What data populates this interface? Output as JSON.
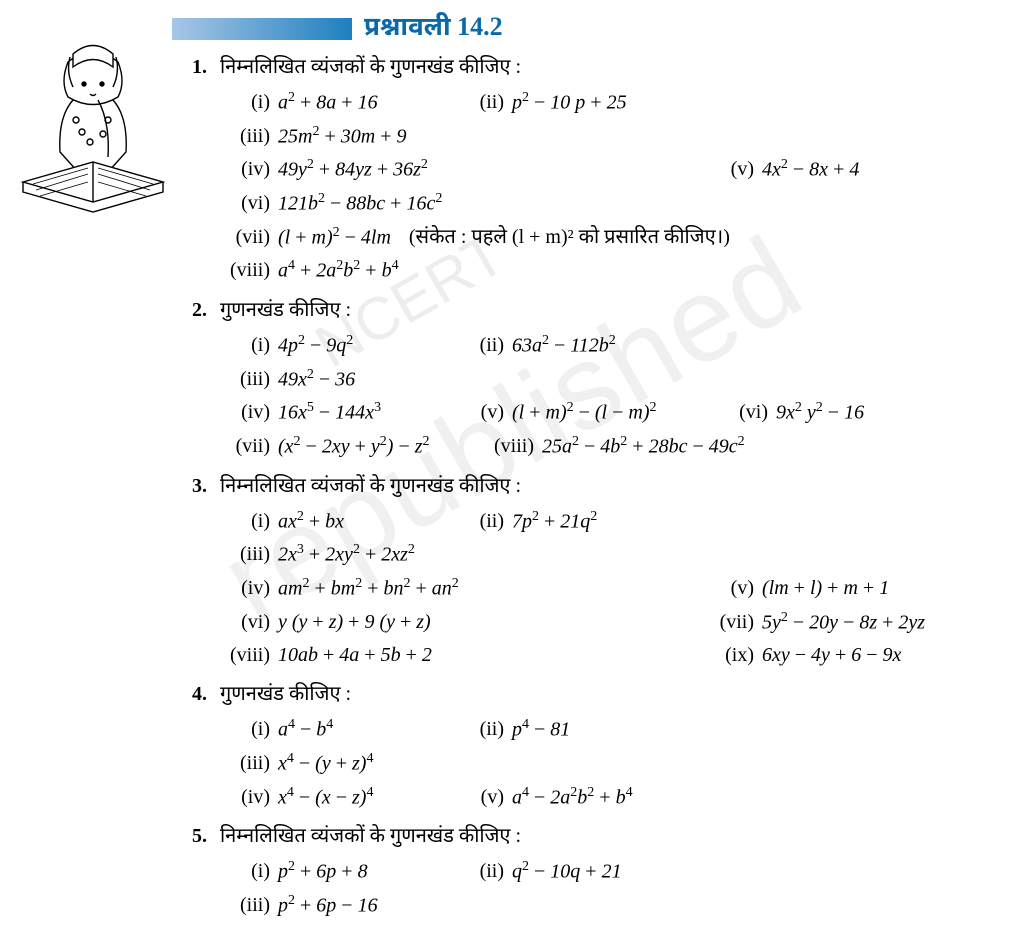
{
  "watermark_large": "republished",
  "watermark_small": "NCERT",
  "header": {
    "title": "प्रश्नावली 14.2",
    "bar_gradient_from": "#a7c7e7",
    "bar_gradient_to": "#1f7fbf",
    "title_color": "#0a6aa8"
  },
  "questions": [
    {
      "num": "1.",
      "text": "निम्नलिखित व्यंजकों के गुणनखंड कीजिए :",
      "items": [
        {
          "label": "(i)",
          "expr": "a² + 8a + 16",
          "w": "w1"
        },
        {
          "label": "(ii)",
          "expr": "p² − 10 p + 25",
          "w": "w2"
        },
        {
          "label": "(iii)",
          "expr": "25m² + 30m + 9",
          "w": "w3"
        },
        {
          "label": "(iv)",
          "expr": "49y² + 84yz + 36z²",
          "w": "w4"
        },
        {
          "label": "(v)",
          "expr": "4x² − 8x + 4",
          "w": "w3"
        },
        {
          "label": "(vi)",
          "expr": "121b² − 88bc + 16c²",
          "w": "w4"
        },
        {
          "label": "(vii)",
          "expr": "(l + m)² − 4lm",
          "hint": "(संकेत : पहले (l + m)² को प्रसारित कीजिए।)",
          "w": "w4"
        },
        {
          "label": "(viii)",
          "expr": "a⁴ + 2a²b² + b⁴",
          "w": "w4"
        }
      ]
    },
    {
      "num": "2.",
      "text": "गुणनखंड कीजिए :",
      "items": [
        {
          "label": "(i)",
          "expr": "4p² − 9q²",
          "w": "w1"
        },
        {
          "label": "(ii)",
          "expr": "63a² − 112b²",
          "w": "w2"
        },
        {
          "label": "(iii)",
          "expr": "49x² − 36",
          "w": "w3"
        },
        {
          "label": "(iv)",
          "expr": "16x⁵ − 144x³",
          "w": "w1"
        },
        {
          "label": "(v)",
          "expr": "(l + m)² − (l − m)²",
          "w": "w2"
        },
        {
          "label": "(vi)",
          "expr": "9x² y² − 16",
          "w": "w1"
        },
        {
          "label": "(vii)",
          "expr": "(x² − 2xy + y²) − z²",
          "w": "w2"
        },
        {
          "label": "(viii)",
          "expr": "25a² − 4b² + 28bc − 49c²",
          "w": "w4"
        }
      ]
    },
    {
      "num": "3.",
      "text": "निम्नलिखित व्यंजकों के गुणनखंड कीजिए :",
      "items": [
        {
          "label": "(i)",
          "expr": "ax² + bx",
          "w": "w1"
        },
        {
          "label": "(ii)",
          "expr": "7p² + 21q²",
          "w": "w2"
        },
        {
          "label": "(iii)",
          "expr": "2x³ + 2xy² + 2xz²",
          "w": "w3"
        },
        {
          "label": "(iv)",
          "expr": "am² + bm² + bn² + an²",
          "w": "w4"
        },
        {
          "label": "(v)",
          "expr": "(lm + l) + m + 1",
          "w": "w3"
        },
        {
          "label": "(vi)",
          "expr": "y (y + z) + 9 (y + z)",
          "w": "w4"
        },
        {
          "label": "(vii)",
          "expr": "5y² − 20y − 8z + 2yz",
          "w": "w3"
        },
        {
          "label": "(viii)",
          "expr": "10ab + 4a + 5b + 2",
          "w": "w4"
        },
        {
          "label": "(ix)",
          "expr": "6xy − 4y + 6 − 9x",
          "w": "w3"
        }
      ]
    },
    {
      "num": "4.",
      "text": "गुणनखंड कीजिए :",
      "items": [
        {
          "label": "(i)",
          "expr": "a⁴ − b⁴",
          "w": "w1"
        },
        {
          "label": "(ii)",
          "expr": "p⁴ − 81",
          "w": "w2"
        },
        {
          "label": "(iii)",
          "expr": "x⁴ − (y + z)⁴",
          "w": "w3"
        },
        {
          "label": "(iv)",
          "expr": "x⁴ − (x − z)⁴",
          "w": "w1"
        },
        {
          "label": "(v)",
          "expr": "a⁴ − 2a²b² + b⁴",
          "w": "w2"
        }
      ]
    },
    {
      "num": "5.",
      "text": "निम्नलिखित व्यंजकों के गुणनखंड कीजिए :",
      "items": [
        {
          "label": "(i)",
          "expr": "p² + 6p + 8",
          "w": "w1"
        },
        {
          "label": "(ii)",
          "expr": "q² − 10q + 21",
          "w": "w2"
        },
        {
          "label": "(iii)",
          "expr": "p² + 6p − 16",
          "w": "w3"
        }
      ]
    }
  ],
  "last_q_align": {
    "pairs": [
      [
        7,
        5
      ],
      [
        8,
        7
      ]
    ]
  }
}
